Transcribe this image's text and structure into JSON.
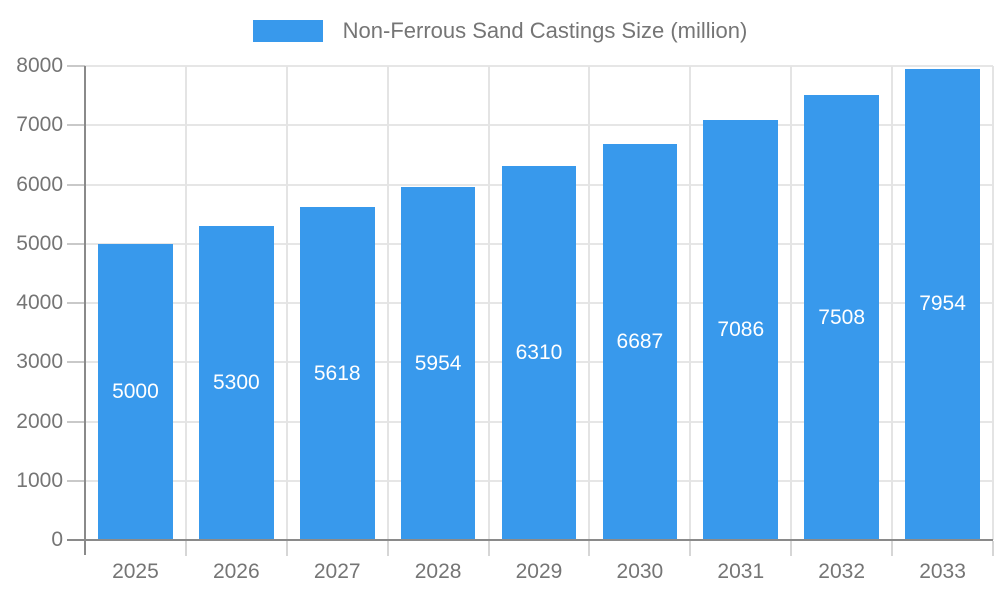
{
  "legend": {
    "label": "Non-Ferrous Sand Castings Size (million)"
  },
  "chart_data": {
    "type": "bar",
    "title": "Non-Ferrous Sand Castings Size (million)",
    "series_name": "Non-Ferrous Sand Castings Size (million)",
    "categories": [
      "2025",
      "2026",
      "2027",
      "2028",
      "2029",
      "2030",
      "2031",
      "2032",
      "2033"
    ],
    "values": [
      5000,
      5300,
      5618,
      5954,
      6310,
      6687,
      7086,
      7508,
      7954
    ],
    "xlabel": "",
    "ylabel": "",
    "ylim": [
      0,
      8000
    ],
    "y_ticks": [
      0,
      1000,
      2000,
      3000,
      4000,
      5000,
      6000,
      7000,
      8000
    ],
    "grid": true,
    "legend_position": "top",
    "bar_labels_inside": true,
    "colors": {
      "bar": "#3899EC",
      "bar_label": "#ffffff",
      "axis_text": "#757575",
      "axis_line": "#8a8a8a",
      "gridline": "#e6e6e6"
    }
  }
}
